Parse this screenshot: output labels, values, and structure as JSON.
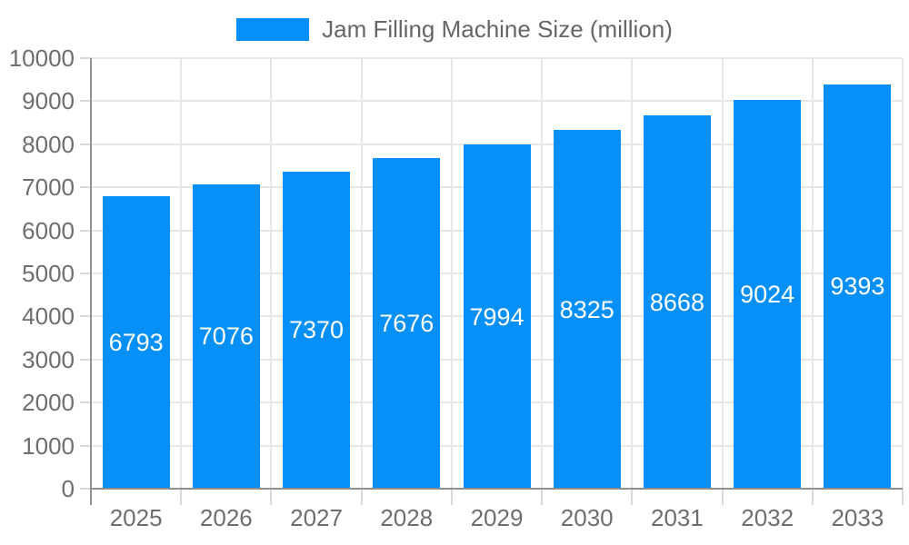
{
  "chart_data": {
    "type": "bar",
    "title": "Jam Filling Machine Size (million)",
    "legend": {
      "label": "Jam Filling Machine Size (million)",
      "position": "top"
    },
    "categories": [
      "2025",
      "2026",
      "2027",
      "2028",
      "2029",
      "2030",
      "2031",
      "2032",
      "2033"
    ],
    "values": [
      6793,
      7076,
      7370,
      7676,
      7994,
      8325,
      8668,
      9024,
      9393
    ],
    "xlabel": "",
    "ylabel": "",
    "ylim": [
      0,
      10000
    ],
    "ytick_step": 1000,
    "grid": true,
    "colors": {
      "bar": "#0590f8",
      "bar_label": "#ffffff",
      "axis_text": "#6e6e6e",
      "legend_text": "#666666",
      "grid_line": "#e6e6e6",
      "tick_mark": "#d9d9d9",
      "axis_line": "#909090",
      "background": "#ffffff"
    }
  }
}
